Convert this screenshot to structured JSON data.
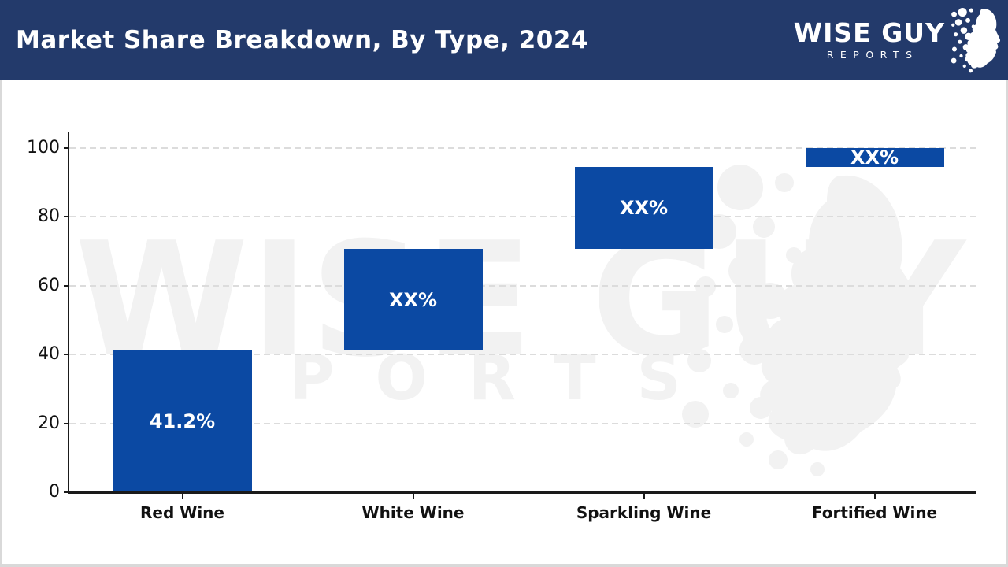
{
  "header": {
    "title": "Market Share Breakdown, By Type, 2024",
    "logo": {
      "line1": "WISE GUY",
      "line2": "REPORTS"
    }
  },
  "watermark": {
    "line1": "WISE GUY",
    "line2": "REPORTS"
  },
  "colors": {
    "header_bg": "#233a6b",
    "bar": "#0b49a3",
    "axis": "#1a1a1a",
    "grid": "#dcdcdc",
    "value_label": "#ffffff",
    "watermark": "#f2f2f2"
  },
  "chart_data": {
    "type": "bar",
    "subtype": "waterfall",
    "title": "Market Share Breakdown, By Type, 2024",
    "xlabel": "",
    "ylabel": "",
    "categories": [
      "Red Wine",
      "White Wine",
      "Sparkling Wine",
      "Fortified Wine"
    ],
    "segments": [
      {
        "category": "Red Wine",
        "start": 0,
        "end": 41.2,
        "value": 41.2,
        "label": "41.2%"
      },
      {
        "category": "White Wine",
        "start": 41.2,
        "end": 70.6,
        "value": 29.4,
        "label": "XX%"
      },
      {
        "category": "Sparkling Wine",
        "start": 70.6,
        "end": 94.5,
        "value": 23.9,
        "label": "XX%"
      },
      {
        "category": "Fortified Wine",
        "start": 94.5,
        "end": 100,
        "value": 5.5,
        "label": "XX%"
      }
    ],
    "y_ticks": [
      0,
      20,
      40,
      60,
      80,
      100
    ],
    "ylim": [
      0,
      104
    ],
    "grid": "horizontal-dashed",
    "legend": "none",
    "bar_color": "#0b49a3",
    "value_label_color": "#ffffff"
  }
}
